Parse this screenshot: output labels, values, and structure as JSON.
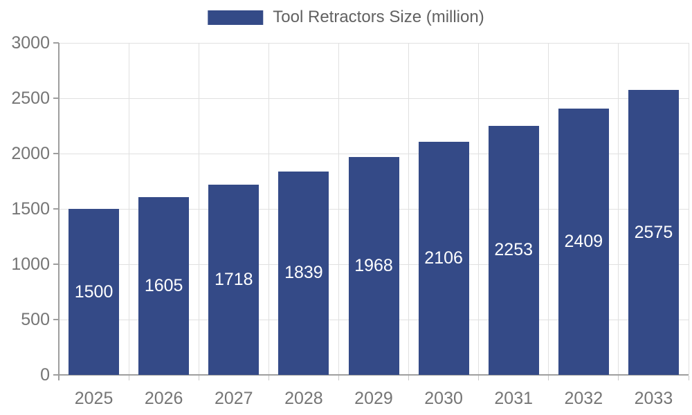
{
  "chart_data": {
    "type": "bar",
    "categories": [
      "2025",
      "2026",
      "2027",
      "2028",
      "2029",
      "2030",
      "2031",
      "2032",
      "2033"
    ],
    "series": [
      {
        "name": "Tool Retractors Size (million)",
        "values": [
          1500,
          1605,
          1718,
          1839,
          1968,
          2106,
          2253,
          2409,
          2575
        ]
      }
    ],
    "ylim": [
      0,
      3000
    ],
    "yticks": [
      0,
      500,
      1000,
      1500,
      2000,
      2500,
      3000
    ],
    "grid": true,
    "legend_position": "top-center",
    "value_labels": "inside-center",
    "colors": {
      "bar": "#344a87",
      "grid": "#e0e0e0",
      "axis": "#9e9e9e",
      "minor_tick": "#c8c8c8",
      "tick_label": "#757575",
      "legend_text": "#616161",
      "bar_label": "#ffffff",
      "background": "#ffffff"
    }
  }
}
